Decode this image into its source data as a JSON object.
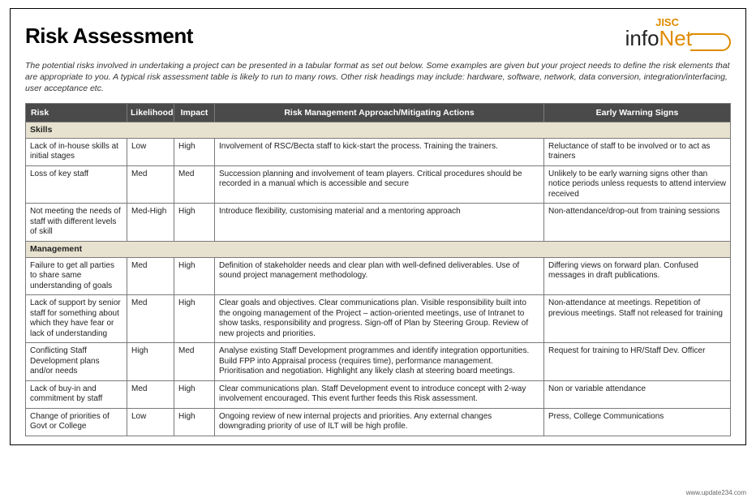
{
  "title": "Risk Assessment",
  "logo": {
    "jisc": "JISC",
    "pre": "info",
    "post": "Net"
  },
  "description": "The potential risks involved in undertaking a project can be presented in a tabular format as set out below.   Some examples are given but your project needs to define the risk elements that are appropriate to you.  A typical risk assessment table is likely to run to many rows.  Other risk headings may include: hardware, software, network, data conversion, integration/interfacing, user acceptance etc.",
  "columns": {
    "risk": "Risk",
    "likelihood": "Likelihood",
    "impact": "Impact",
    "approach": "Risk Management Approach/Mitigating Actions",
    "warning": "Early Warning Signs"
  },
  "colors": {
    "header_bg": "#4a4a4a",
    "header_text": "#ffffff",
    "section_bg": "#e7e2cf",
    "border": "#7a7a7a",
    "logo_orange": "#e08a00"
  },
  "sections": [
    {
      "name": "Skills",
      "rows": [
        {
          "risk": "Lack of in-house skills at initial stages",
          "likelihood": "Low",
          "impact": "High",
          "approach": "Involvement of RSC/Becta staff to kick-start the process.  Training the trainers.",
          "warning": "Reluctance of staff to be involved or to act as trainers"
        },
        {
          "risk": "Loss of key staff",
          "likelihood": "Med",
          "impact": "Med",
          "approach": "Succession planning and involvement of team players. Critical procedures should be recorded in a manual which is accessible and secure",
          "warning": "Unlikely to be early warning signs other than notice periods unless requests to attend interview received"
        },
        {
          "risk": "Not meeting the needs of staff with different levels of skill",
          "likelihood": "Med-High",
          "impact": "High",
          "approach": "Introduce flexibility, customising material and a mentoring approach",
          "warning": "Non-attendance/drop-out from training sessions"
        }
      ]
    },
    {
      "name": "Management",
      "rows": [
        {
          "risk": "Failure to get all parties to share same understanding of goals",
          "likelihood": "Med",
          "impact": "High",
          "approach": "Definition of stakeholder needs and clear plan with well-defined deliverables.  Use of sound project management methodology.",
          "warning": "Differing views on forward plan.  Confused messages in draft publications."
        },
        {
          "risk": "Lack of support by senior staff for something about which they have fear or lack of understanding",
          "likelihood": "Med",
          "impact": "High",
          "approach": "Clear goals and objectives.  Clear communications plan.  Visible responsibility built into the ongoing management of the Project – action-oriented meetings, use of Intranet to show tasks, responsibility and progress.  Sign-off of Plan by Steering Group.   Review of new projects and priorities.",
          "warning": "Non-attendance at meetings.  Repetition of previous meetings. Staff not released for training"
        },
        {
          "risk": "Conflicting Staff Development plans and/or needs",
          "likelihood": "High",
          "impact": "Med",
          "approach": "Analyse existing Staff Development programmes and identify integration opportunities.  Build FPP into Appraisal process (requires time), performance management.  Prioritisation and negotiation.  Highlight any likely clash at steering board meetings.",
          "warning": "Request for training to HR/Staff Dev. Officer"
        },
        {
          "risk": "Lack of buy-in and commitment by staff",
          "likelihood": "Med",
          "impact": "High",
          "approach": "Clear communications plan.  Staff Development event to introduce concept with 2-way involvement encouraged.  This event further feeds this Risk assessment.",
          "warning": "Non or variable attendance"
        },
        {
          "risk": "Change of priorities of Govt or College",
          "likelihood": "Low",
          "impact": "High",
          "approach": "Ongoing review of new internal projects and priorities.  Any external changes downgrading priority of use of ILT will be high profile.",
          "warning": "Press, College Communications"
        }
      ]
    }
  ],
  "footer_url": "www.update234.com"
}
